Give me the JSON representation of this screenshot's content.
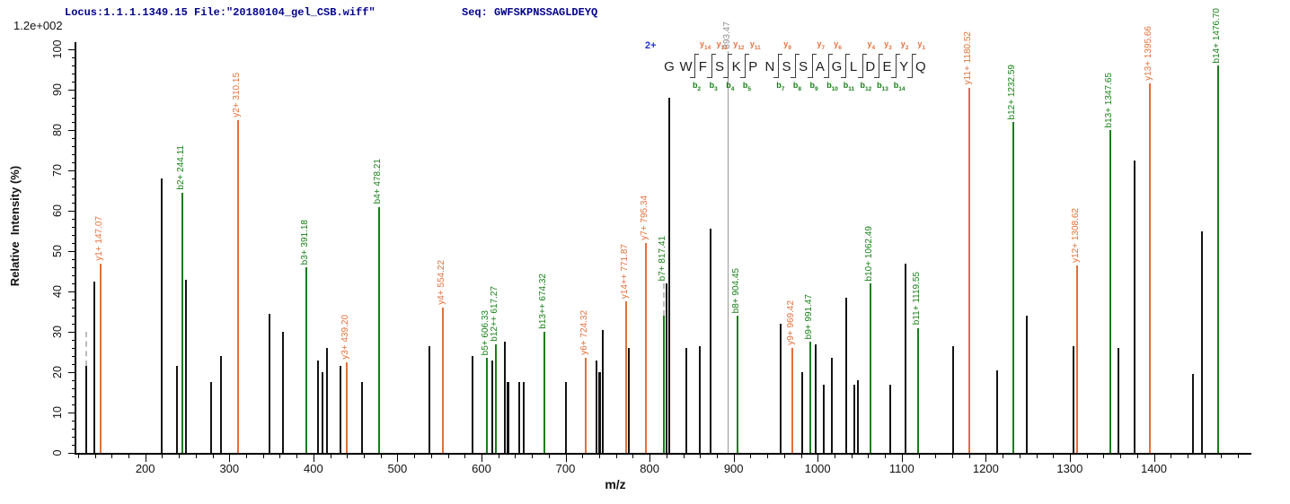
{
  "header": {
    "locus_file": "Locus:1.1.1.1349.15 File:\"20180104_gel_CSB.wiff\"",
    "seq": "Seq: GWFSKPNSSAGLDEYQ",
    "y_max_label": "1.2e+002"
  },
  "axes": {
    "x_label": "m/z",
    "y_label": "Relative  Intensity (%)",
    "x_range": [
      118,
      1515
    ],
    "x_major_ticks": [
      200,
      300,
      400,
      500,
      600,
      700,
      800,
      900,
      1000,
      1100,
      1200,
      1300,
      1400
    ],
    "x_minor_step": 20,
    "y_range": [
      0,
      100
    ],
    "y_major_ticks": [
      0,
      10,
      20,
      30,
      40,
      50,
      60,
      70,
      80,
      90,
      100
    ],
    "y_minor_step": 2
  },
  "colors": {
    "b_ion": "#168016",
    "y_ion": "#e2703a",
    "peak": "#131313",
    "precursor_line": "#9a9a9a",
    "precursor_label": "#8b8b8b",
    "header_text": "#00008b",
    "charge_blue": "#2233cc",
    "dashed": "#bcbcbc"
  },
  "annotation": {
    "charge": "2+",
    "precursor_mz": 893.47,
    "precursor_label": "893.47",
    "precursor_height_pct": 99.5,
    "residues": [
      "G",
      "W",
      "F",
      "S",
      "K",
      "P",
      "N",
      "S",
      "S",
      "A",
      "G",
      "L",
      "D",
      "E",
      "Y",
      "Q"
    ],
    "cleavages": [
      {
        "after": 1,
        "y": "y14",
        "b": "b2"
      },
      {
        "after": 2,
        "y": "y13",
        "b": "b3"
      },
      {
        "after": 3,
        "y": "y12",
        "b": "b4"
      },
      {
        "after": 4,
        "y": "y11",
        "b": "b5"
      },
      {
        "after": 6,
        "y": "y9",
        "b": "b7"
      },
      {
        "after": 7,
        "y": null,
        "b": "b8"
      },
      {
        "after": 8,
        "y": "y7",
        "b": "b9"
      },
      {
        "after": 9,
        "y": "y6",
        "b": "b10"
      },
      {
        "after": 10,
        "y": null,
        "b": "b11"
      },
      {
        "after": 11,
        "y": "y4",
        "b": "b12"
      },
      {
        "after": 12,
        "y": "y3",
        "b": "b13"
      },
      {
        "after": 13,
        "y": "y2",
        "b": "b14"
      },
      {
        "after": 14,
        "y": "y1",
        "b": null
      }
    ]
  },
  "chart_data": {
    "type": "bar",
    "subtype": "ms2-fragment-spectrum",
    "xlabel": "m/z",
    "ylabel": "Relative  Intensity (%)",
    "xlim": [
      118,
      1515
    ],
    "ylim": [
      0,
      120
    ],
    "ymax_label": "1.2e+002",
    "peaks": [
      {
        "mz": 130,
        "intensity": 21.5,
        "t": "u",
        "dash": 30
      },
      {
        "mz": 139,
        "intensity": 42.5,
        "t": "u"
      },
      {
        "mz": 147.07,
        "intensity": 47,
        "t": "y",
        "label": "y1+ 147.07"
      },
      {
        "mz": 220,
        "intensity": 68,
        "t": "u"
      },
      {
        "mz": 238,
        "intensity": 21.5,
        "t": "u"
      },
      {
        "mz": 244.11,
        "intensity": 64.5,
        "t": "b",
        "label": "b2+ 244.11"
      },
      {
        "mz": 248.5,
        "intensity": 43,
        "t": "u"
      },
      {
        "mz": 278,
        "intensity": 17.5,
        "t": "u"
      },
      {
        "mz": 290,
        "intensity": 24,
        "t": "u"
      },
      {
        "mz": 310.15,
        "intensity": 82.5,
        "t": "y",
        "label": "y2+ 310.15"
      },
      {
        "mz": 348,
        "intensity": 34.5,
        "t": "u"
      },
      {
        "mz": 364,
        "intensity": 30,
        "t": "u"
      },
      {
        "mz": 391.18,
        "intensity": 46,
        "t": "b",
        "label": "b3+ 391.18"
      },
      {
        "mz": 405,
        "intensity": 23,
        "t": "u"
      },
      {
        "mz": 411,
        "intensity": 20,
        "t": "u"
      },
      {
        "mz": 416,
        "intensity": 26,
        "t": "u"
      },
      {
        "mz": 432,
        "intensity": 21.5,
        "t": "u"
      },
      {
        "mz": 439.2,
        "intensity": 22.5,
        "t": "y",
        "label": "y3+ 439.20"
      },
      {
        "mz": 458,
        "intensity": 17.5,
        "t": "u"
      },
      {
        "mz": 478.21,
        "intensity": 61,
        "t": "b",
        "label": "b4+ 478.21"
      },
      {
        "mz": 538,
        "intensity": 26.5,
        "t": "u"
      },
      {
        "mz": 554.22,
        "intensity": 36,
        "t": "y",
        "label": "y4+ 554.22"
      },
      {
        "mz": 589,
        "intensity": 24,
        "t": "u"
      },
      {
        "mz": 606.33,
        "intensity": 23.5,
        "t": "b",
        "label": "b5+ 606.33"
      },
      {
        "mz": 613,
        "intensity": 23,
        "t": "u"
      },
      {
        "mz": 617.27,
        "intensity": 27,
        "t": "b",
        "label": "b12++ 617.27"
      },
      {
        "mz": 628,
        "intensity": 27.5,
        "t": "u"
      },
      {
        "mz": 631,
        "intensity": 17.5,
        "t": "u",
        "w": 3
      },
      {
        "mz": 645,
        "intensity": 17.5,
        "t": "u"
      },
      {
        "mz": 650,
        "intensity": 17.5,
        "t": "u"
      },
      {
        "mz": 674.32,
        "intensity": 30,
        "t": "b",
        "label": "b13++ 674.32"
      },
      {
        "mz": 700,
        "intensity": 17.5,
        "t": "u"
      },
      {
        "mz": 724.32,
        "intensity": 23.5,
        "t": "y",
        "label": "y6+ 724.32"
      },
      {
        "mz": 737,
        "intensity": 23,
        "t": "u"
      },
      {
        "mz": 741,
        "intensity": 20,
        "t": "u",
        "w": 3
      },
      {
        "mz": 744,
        "intensity": 30.5,
        "t": "u"
      },
      {
        "mz": 771.87,
        "intensity": 37.5,
        "t": "y",
        "label": "y14++ 771.87"
      },
      {
        "mz": 775.5,
        "intensity": 26,
        "t": "u"
      },
      {
        "mz": 795.34,
        "intensity": 52,
        "t": "y",
        "label": "y7+ 795.34"
      },
      {
        "mz": 817.41,
        "intensity": 34,
        "t": "b",
        "label": "b7+ 817.41",
        "dash": 42
      },
      {
        "mz": 820.5,
        "intensity": 42,
        "t": "u"
      },
      {
        "mz": 823,
        "intensity": 88,
        "t": "u"
      },
      {
        "mz": 844,
        "intensity": 26,
        "t": "u"
      },
      {
        "mz": 860,
        "intensity": 26.5,
        "t": "u"
      },
      {
        "mz": 873,
        "intensity": 55.5,
        "t": "u"
      },
      {
        "mz": 904.45,
        "intensity": 34,
        "t": "b",
        "label": "b8+ 904.45"
      },
      {
        "mz": 956,
        "intensity": 32,
        "t": "u"
      },
      {
        "mz": 969.42,
        "intensity": 26,
        "t": "y",
        "label": "y9+ 969.42"
      },
      {
        "mz": 982,
        "intensity": 20,
        "t": "u"
      },
      {
        "mz": 991.47,
        "intensity": 27.5,
        "t": "b",
        "label": "b9+ 991.47"
      },
      {
        "mz": 998,
        "intensity": 27,
        "t": "u"
      },
      {
        "mz": 1007,
        "intensity": 17,
        "t": "u"
      },
      {
        "mz": 1017,
        "intensity": 23.5,
        "t": "u"
      },
      {
        "mz": 1034,
        "intensity": 38.5,
        "t": "u"
      },
      {
        "mz": 1043,
        "intensity": 17,
        "t": "u"
      },
      {
        "mz": 1048,
        "intensity": 18,
        "t": "u"
      },
      {
        "mz": 1062.49,
        "intensity": 42,
        "t": "b",
        "label": "b10+ 1062.49"
      },
      {
        "mz": 1086,
        "intensity": 17,
        "t": "u"
      },
      {
        "mz": 1104,
        "intensity": 47,
        "t": "u"
      },
      {
        "mz": 1119.55,
        "intensity": 31,
        "t": "b",
        "label": "b11+ 1119.55"
      },
      {
        "mz": 1161,
        "intensity": 26.5,
        "t": "u"
      },
      {
        "mz": 1180.52,
        "intensity": 90.5,
        "t": "y",
        "label": "y11+ 1180.52"
      },
      {
        "mz": 1213,
        "intensity": 20.5,
        "t": "u"
      },
      {
        "mz": 1232.59,
        "intensity": 82,
        "t": "b",
        "label": "b12+ 1232.59"
      },
      {
        "mz": 1249,
        "intensity": 34,
        "t": "u"
      },
      {
        "mz": 1304,
        "intensity": 26.5,
        "t": "u"
      },
      {
        "mz": 1308.62,
        "intensity": 46.5,
        "t": "y",
        "label": "y12+ 1308.62"
      },
      {
        "mz": 1347.65,
        "intensity": 80,
        "t": "b",
        "label": "b13+ 1347.65"
      },
      {
        "mz": 1358,
        "intensity": 26,
        "t": "u"
      },
      {
        "mz": 1377,
        "intensity": 72.5,
        "t": "u"
      },
      {
        "mz": 1395.66,
        "intensity": 91.5,
        "t": "y",
        "label": "y13+ 1395.66"
      },
      {
        "mz": 1446,
        "intensity": 19.5,
        "t": "u"
      },
      {
        "mz": 1457,
        "intensity": 55,
        "t": "u"
      },
      {
        "mz": 1476.7,
        "intensity": 96,
        "t": "b",
        "label": "b14+ 1476.70"
      }
    ]
  }
}
